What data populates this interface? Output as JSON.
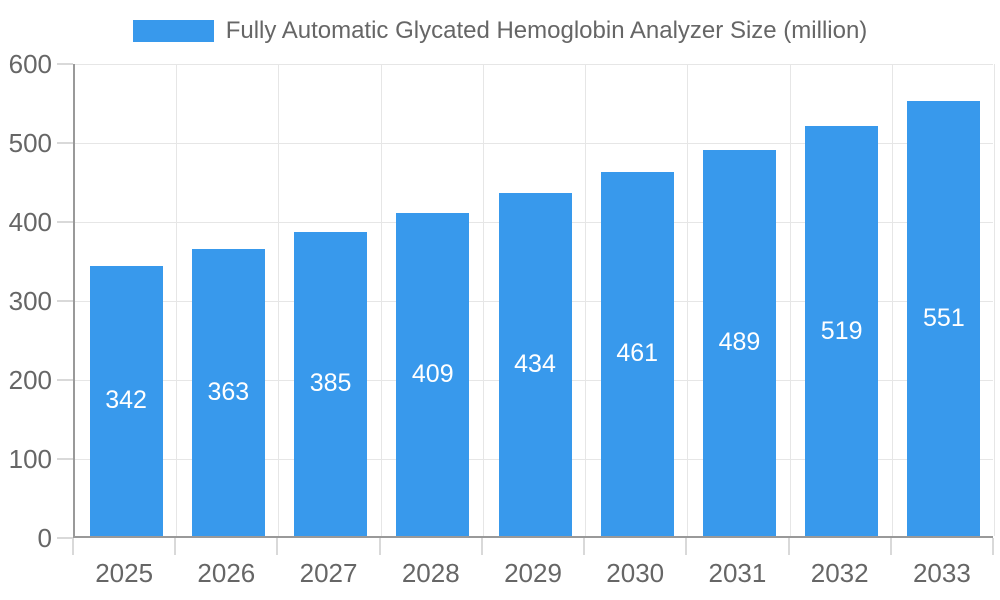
{
  "chart_data": {
    "type": "bar",
    "title": "Fully Automatic Glycated Hemoglobin Analyzer Size (million)",
    "xlabel": "",
    "ylabel": "",
    "categories": [
      "2025",
      "2026",
      "2027",
      "2028",
      "2029",
      "2030",
      "2031",
      "2032",
      "2033"
    ],
    "values": [
      342,
      363,
      385,
      409,
      434,
      461,
      489,
      519,
      551
    ],
    "yticks": [
      0,
      100,
      200,
      300,
      400,
      500,
      600
    ],
    "ylim": [
      0,
      600
    ],
    "grid": true,
    "legend_position": "top-center",
    "value_labels": "inside-center",
    "colors": {
      "bar": "#3899ec",
      "grid": "#e6e6e6",
      "tick": "#d9d9d9",
      "axis": "#999999",
      "text": "#666666",
      "value_label": "#ffffff",
      "background": "#ffffff"
    }
  },
  "legend": {
    "label": "Fully Automatic Glycated Hemoglobin Analyzer Size (million)"
  }
}
